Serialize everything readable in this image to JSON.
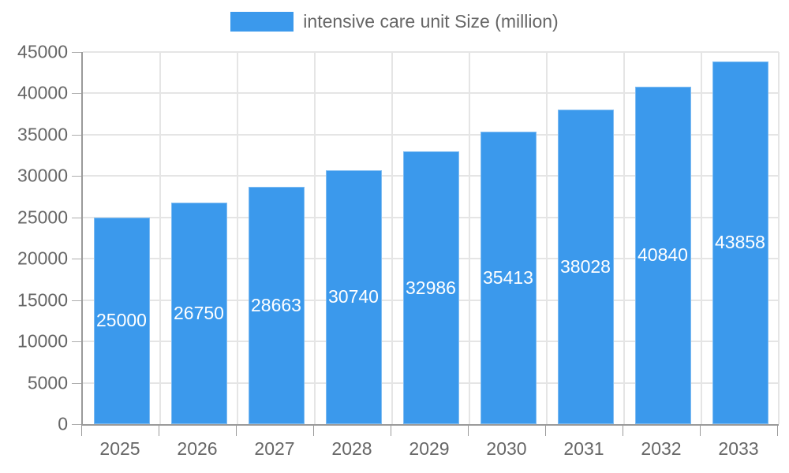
{
  "chart_data": {
    "type": "bar",
    "legend": "intensive care unit Size (million)",
    "legend_position": "top",
    "categories": [
      "2025",
      "2026",
      "2027",
      "2028",
      "2029",
      "2030",
      "2031",
      "2032",
      "2033"
    ],
    "series": [
      {
        "name": "intensive care unit Size (million)",
        "values": [
          25000,
          26750,
          28663,
          30740,
          32986,
          35413,
          38028,
          40840,
          43858
        ]
      }
    ],
    "values_labeled_on_bars": true,
    "xlabel": "",
    "ylabel": "",
    "ylim": [
      0,
      45000
    ],
    "ytick_step": 5000,
    "yticks": [
      0,
      5000,
      10000,
      15000,
      20000,
      25000,
      30000,
      35000,
      40000,
      45000
    ],
    "grid": "on",
    "colors": {
      "bar_fill": "#3b99ec",
      "bar_border": "rgba(255,255,255,0.35)",
      "bar_value_text": "#ffffff",
      "axis_line": "#9a9a9a",
      "gridline": "#e5e5e5",
      "tick_text": "#666666",
      "legend_text": "#666666",
      "background": "#ffffff"
    }
  }
}
